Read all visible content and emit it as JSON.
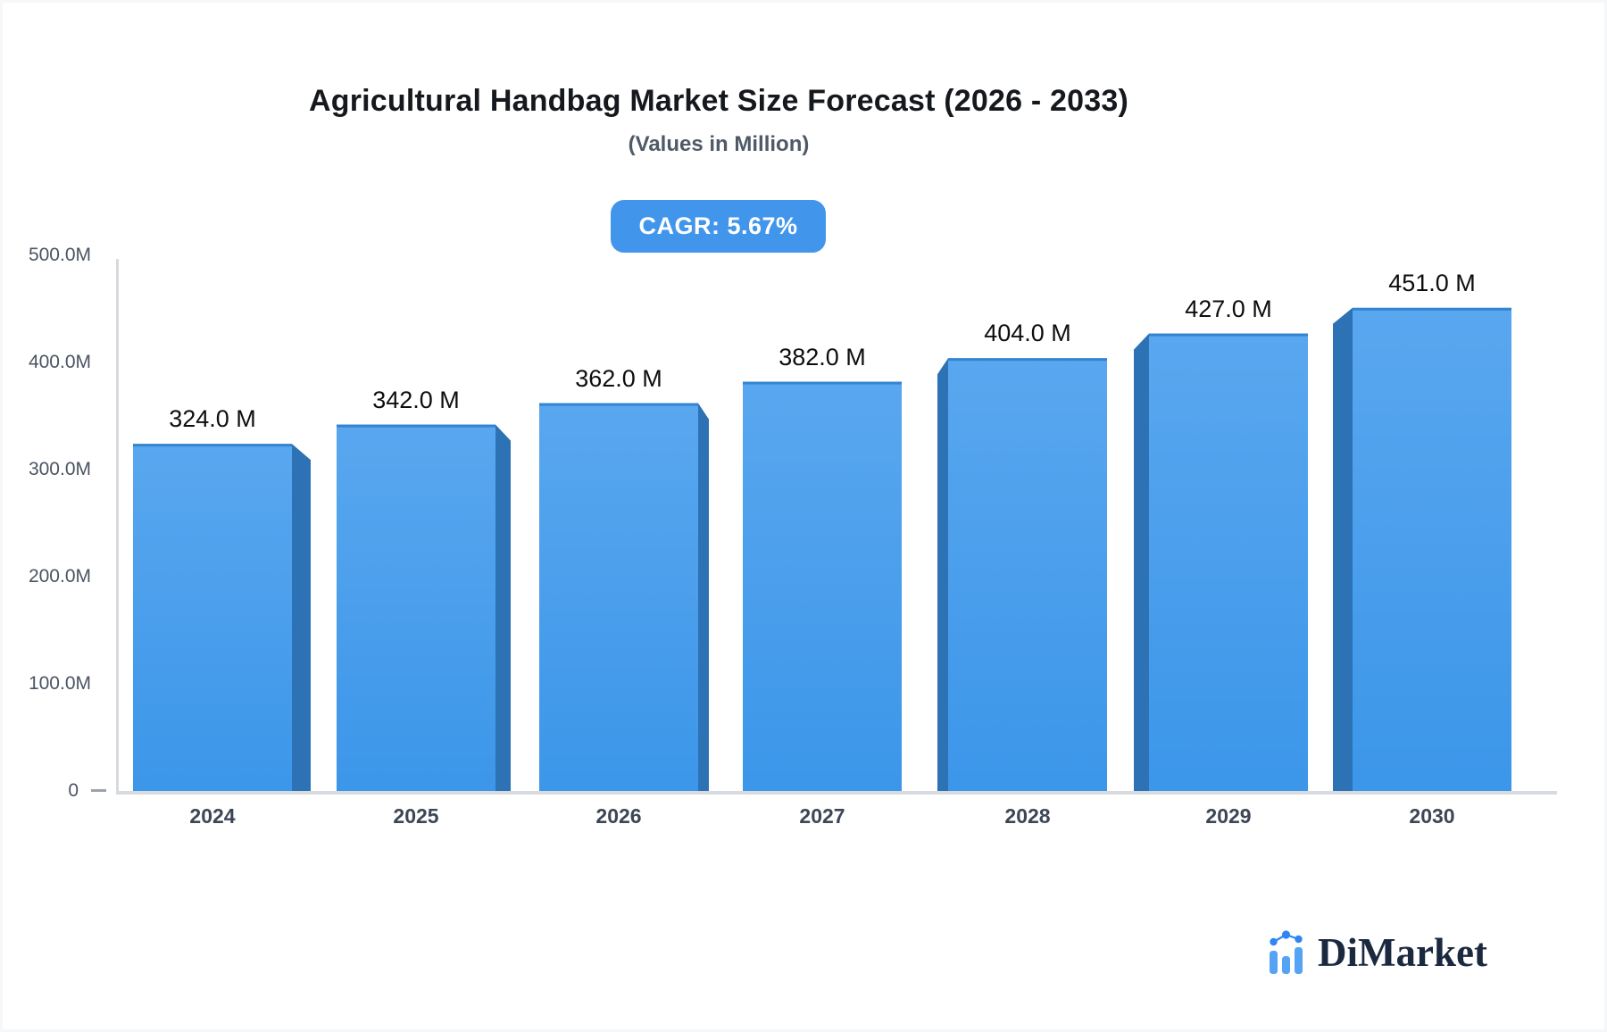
{
  "header": {
    "title": "Agricultural Handbag Market Size Forecast (2026 - 2033)",
    "subtitle": "(Values in Million)",
    "cagr_badge": "CAGR: 5.67%",
    "badge_bg": "#4196ec"
  },
  "chart_data": {
    "type": "bar",
    "title": "Agricultural Handbag Market Size Forecast (2026 - 2033)",
    "subtitle": "(Values in Million)",
    "annotation": "CAGR: 5.67%",
    "categories": [
      "2024",
      "2025",
      "2026",
      "2027",
      "2028",
      "2029",
      "2030"
    ],
    "values": [
      324,
      342,
      362,
      382,
      404,
      427,
      451
    ],
    "value_labels": [
      "324.0 M",
      "342.0 M",
      "362.0 M",
      "382.0 M",
      "404.0 M",
      "427.0 M",
      "451.0 M"
    ],
    "xlabel": "",
    "ylabel": "",
    "y_ticks": [
      {
        "value": 500,
        "label": "500.0M"
      },
      {
        "value": 400,
        "label": "400.0M"
      },
      {
        "value": 300,
        "label": "300.0M"
      },
      {
        "value": 200,
        "label": "200.0M"
      },
      {
        "value": 100,
        "label": "100.0M"
      },
      {
        "value": 0,
        "label": "0"
      }
    ],
    "ylim": [
      0,
      500
    ],
    "grid": false,
    "legend": false,
    "style_3d_perspective": true,
    "colors": {
      "bar_face_top": "#59a7ef",
      "bar_face_bottom": "#3c96e9",
      "bar_top_edge": "#3484d0",
      "bar_side_face": "#2d72b4",
      "axis_line": "#d7dade",
      "tick": "#9aa2ac"
    }
  },
  "footer": {
    "brand": "DiMarket",
    "logo_bar_color": "#55a4f4",
    "logo_dot_color": "#2e86f0"
  }
}
